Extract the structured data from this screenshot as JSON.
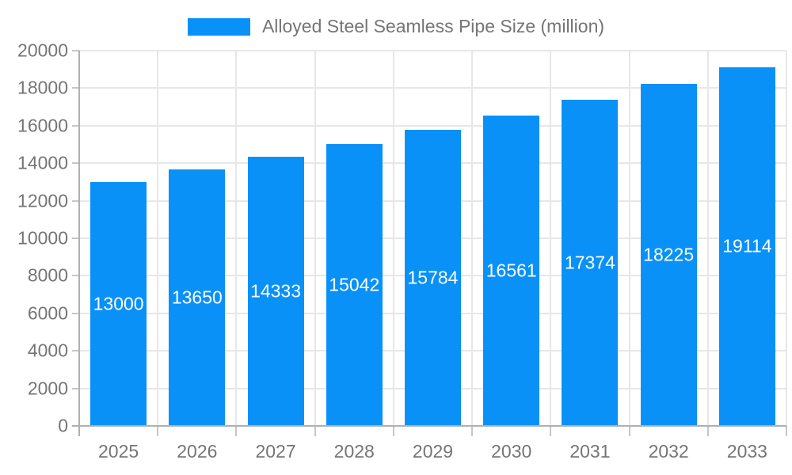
{
  "chart_data": {
    "type": "bar",
    "title": "",
    "legend_label": "Alloyed Steel Seamless Pipe Size (million)",
    "legend_position": "top",
    "categories": [
      "2025",
      "2026",
      "2027",
      "2028",
      "2029",
      "2030",
      "2031",
      "2032",
      "2033"
    ],
    "series": [
      {
        "name": "Alloyed Steel Seamless Pipe Size (million)",
        "values": [
          13000,
          13650,
          14333,
          15042,
          15784,
          16561,
          17374,
          18225,
          19114
        ]
      }
    ],
    "values": [
      13000,
      13650,
      14333,
      15042,
      15784,
      16561,
      17374,
      18225,
      19114
    ],
    "bar_value_labels": [
      "13000",
      "13650",
      "14333",
      "15042",
      "15784",
      "16561",
      "17374",
      "18225",
      "19114"
    ],
    "xlabel": "",
    "ylabel": "",
    "ylim": [
      0,
      20000
    ],
    "y_tick_step": 2000,
    "y_tick_labels": [
      "0",
      "2000",
      "4000",
      "6000",
      "8000",
      "10000",
      "12000",
      "14000",
      "16000",
      "18000",
      "20000"
    ],
    "grid": true
  },
  "colors": {
    "bar": "#0991f7",
    "axis": "#b0b0b0",
    "gridline": "#e7e7e7",
    "tick": "#c6c6c6",
    "axis_label_text": "#757575",
    "bar_label_text": "#ffffff",
    "background": "#ffffff"
  }
}
